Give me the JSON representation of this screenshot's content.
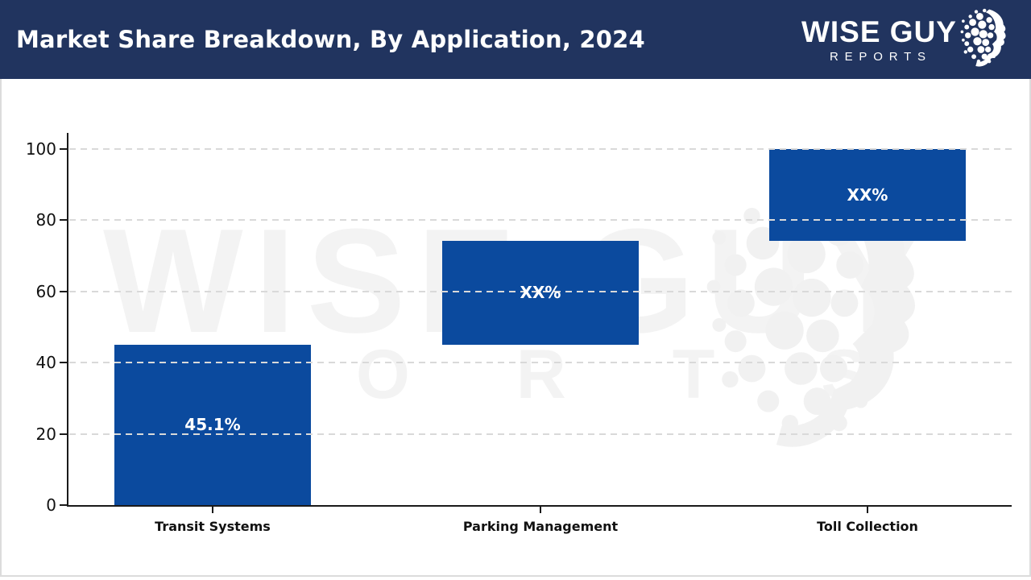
{
  "header": {
    "title": "Market Share Breakdown, By Application, 2024",
    "logo": {
      "line1": "WISE GUY",
      "line2": "REPORTS"
    }
  },
  "watermark": {
    "line1": "WISE GUY",
    "line2": "R O R T S"
  },
  "chart_data": {
    "type": "bar",
    "subtype": "waterfall",
    "title": "Market Share Breakdown, By Application, 2024",
    "categories": [
      "Transit Systems",
      "Parking Management",
      "Toll Collection"
    ],
    "segments": [
      {
        "category": "Transit Systems",
        "start": 0,
        "end": 45.1,
        "label": "45.1%"
      },
      {
        "category": "Parking Management",
        "start": 45.1,
        "end": 74.3,
        "label": "XX%"
      },
      {
        "category": "Toll Collection",
        "start": 74.3,
        "end": 100,
        "label": "XX%"
      }
    ],
    "xlabel": "",
    "ylabel": "",
    "ylim": [
      0,
      104.5
    ],
    "yticks": [
      0,
      20,
      40,
      60,
      80,
      100
    ],
    "grid": "horizontal dashed, drawn over bars",
    "legend": "none",
    "colors": {
      "bar": "#0b4a9e",
      "gridline": "#d9d9d9",
      "axis": "#1a1a1a",
      "header_bg": "#21345f",
      "bar_label": "#ffffff",
      "watermark": "#f2f2f2"
    }
  }
}
